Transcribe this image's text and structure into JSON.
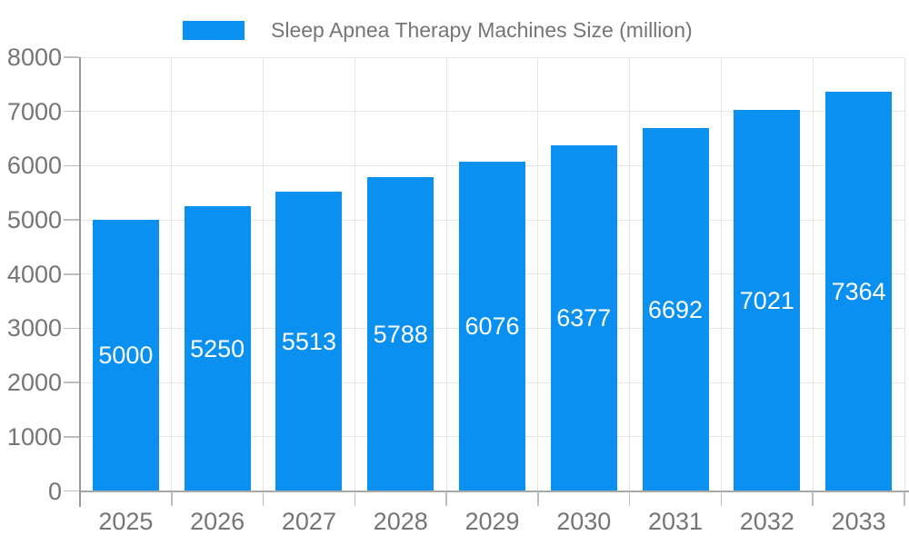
{
  "chart_data": {
    "type": "bar",
    "title": "Sleep Apnea Therapy Machines Size (million)",
    "categories": [
      "2025",
      "2026",
      "2027",
      "2028",
      "2029",
      "2030",
      "2031",
      "2032",
      "2033"
    ],
    "values": [
      5000,
      5250,
      5513,
      5788,
      6076,
      6377,
      6692,
      7021,
      7364
    ],
    "series": [
      {
        "name": "Sleep Apnea Therapy Machines Size (million)",
        "values": [
          5000,
          5250,
          5513,
          5788,
          6076,
          6377,
          6692,
          7021,
          7364
        ]
      }
    ],
    "ylim": [
      0,
      8000
    ],
    "y_tick_step": 1000,
    "y_tick_labels": [
      "0",
      "1000",
      "2000",
      "3000",
      "4000",
      "5000",
      "6000",
      "7000",
      "8000"
    ],
    "grid": true,
    "legend_position": "top-center",
    "value_labels_inside_bars": true,
    "colors": {
      "bar": "#0a90f0",
      "value_label": "#ffffff",
      "axis_text": "#757575",
      "gridline": "#e6e6e6",
      "axis_line": "#a8a8a8",
      "y_axis_line": "#999999",
      "tick": "#bdbdbd",
      "background": "#ffffff"
    }
  }
}
